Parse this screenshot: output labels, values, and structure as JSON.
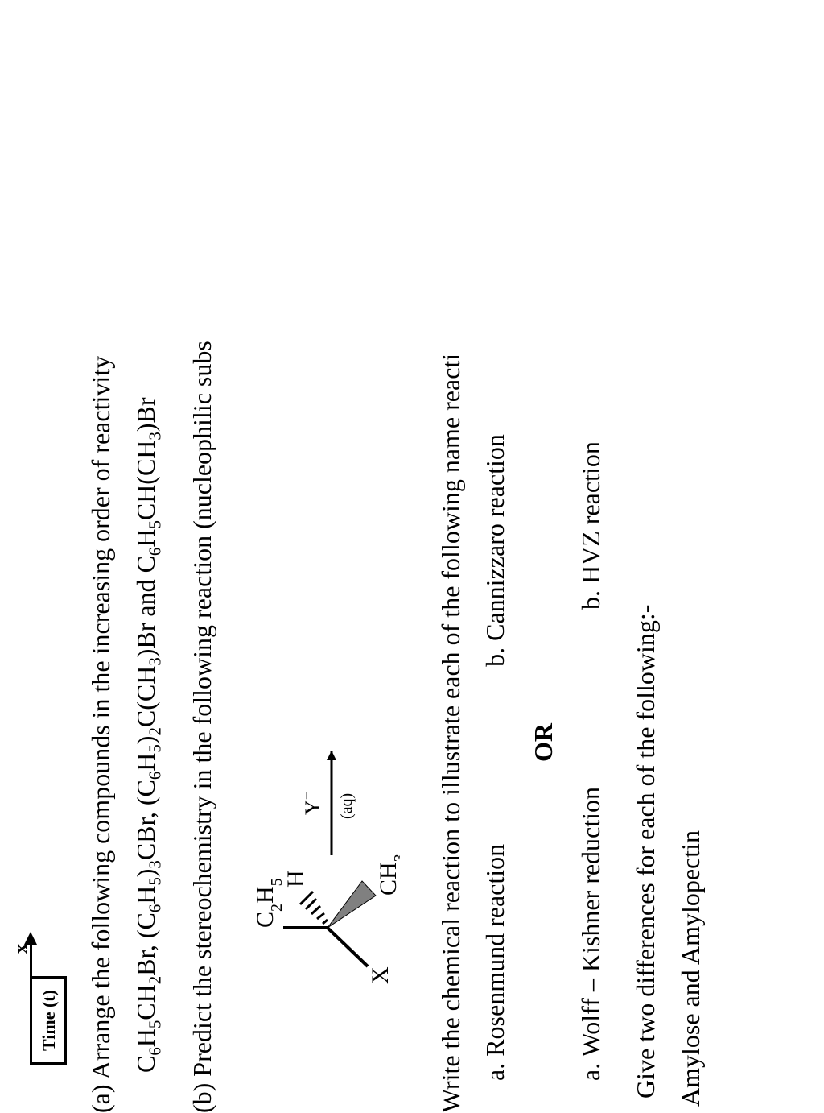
{
  "page": {
    "background_color": "#ffffff",
    "text_color": "#000000",
    "font_family": "Times New Roman",
    "base_font_size_pt": 24
  },
  "time_axis": {
    "label": "Time (t)",
    "end_label": "x"
  },
  "questions": {
    "a": {
      "label": "(a)",
      "text": "Arrange the following compounds in the increasing order of reactivity",
      "compounds_html": "C<sub>6</sub>H<sub>5</sub>CH<sub>2</sub>Br, (C<sub>6</sub>H<sub>5</sub>)<sub>3</sub>CBr, (C<sub>6</sub>H<sub>5</sub>)<sub>2</sub>C(CH<sub>3</sub>)Br  and  C<sub>6</sub>H<sub>5</sub>CH(CH<sub>3</sub>)Br"
    },
    "b": {
      "label": "(b)",
      "text": "Predict the stereochemistry in the following reaction (nucleophilic subs"
    }
  },
  "structure": {
    "top_group": "C₂H₅",
    "back_group": "H",
    "left_group": "X",
    "right_group": "CH₃",
    "arrow_label_top": "Y⁻",
    "arrow_label_bottom": "(aq)",
    "wedge_fill": "#808080"
  },
  "name_reactions": {
    "prompt": "Write the chemical reaction to illustrate each of the following name reacti",
    "row1": {
      "a": "a. Rosenmund reaction",
      "b": "b. Cannizzaro reaction"
    },
    "or": "OR",
    "row2": {
      "a": "a. Wolff – Kishner reduction",
      "b": "b. HVZ reaction"
    }
  },
  "differences": {
    "prompt": "Give two differences for each of the following:-",
    "item": "Amylose and Amylopectin"
  }
}
